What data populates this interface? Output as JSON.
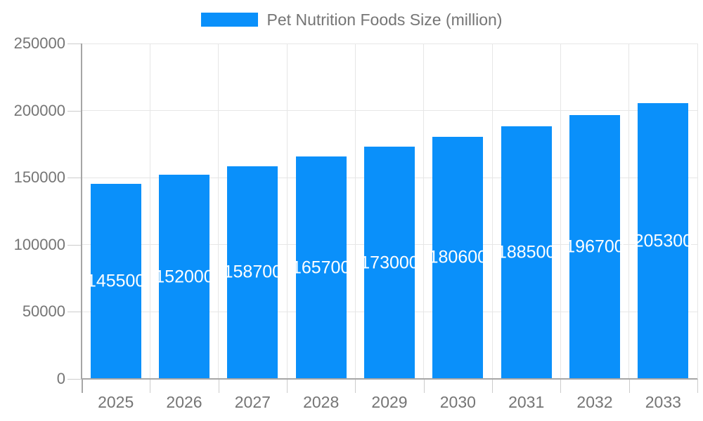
{
  "legend": {
    "label": "Pet Nutrition Foods Size (million)",
    "swatch_color": "#0a90fa"
  },
  "chart_data": {
    "type": "bar",
    "title": "Pet Nutrition Foods Size (million)",
    "categories": [
      "2025",
      "2026",
      "2027",
      "2028",
      "2029",
      "2030",
      "2031",
      "2032",
      "2033"
    ],
    "series": [
      {
        "name": "Pet Nutrition Foods Size (million)",
        "color": "#0a90fa",
        "values": [
          145500,
          152000,
          158700,
          165700,
          173000,
          180600,
          188500,
          196700,
          205300
        ]
      }
    ],
    "bar_labels": [
      "145500",
      "152000",
      "158700",
      "165700",
      "173000",
      "180600",
      "188500",
      "196700",
      "205300"
    ],
    "xlabel": "",
    "ylabel": "",
    "ylim": [
      0,
      250000
    ],
    "yticks": [
      0,
      50000,
      100000,
      150000,
      200000,
      250000
    ],
    "ytick_labels": [
      "0",
      "50000",
      "100000",
      "150000",
      "200000",
      "250000"
    ],
    "grid": true,
    "legend_position": "top",
    "colors": {
      "bar": "#0a90fa",
      "bar_value_text": "#ffffff",
      "axis_text": "#757575",
      "gridline": "#e6e6e6",
      "axis_line": "#a6a6a6",
      "tick_mark": "#cccccc",
      "background": "#ffffff"
    }
  }
}
